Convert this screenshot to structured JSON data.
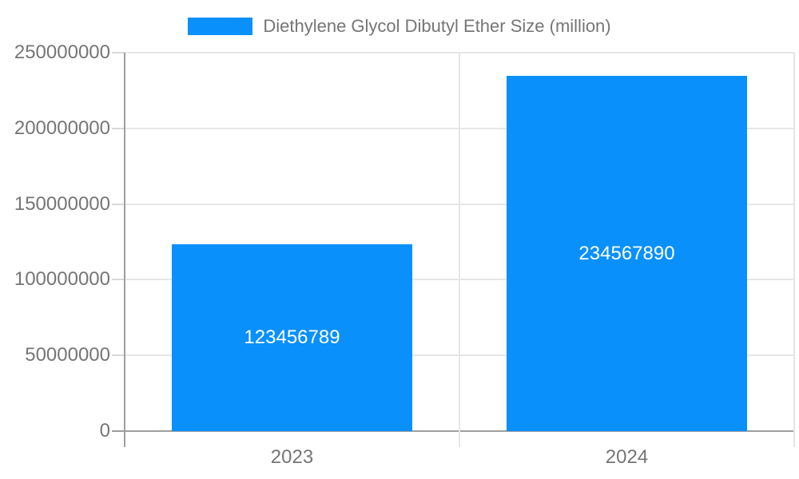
{
  "chart_data": {
    "type": "bar",
    "title": "Diethylene Glycol Dibutyl Ether Size (million)",
    "categories": [
      "2023",
      "2024"
    ],
    "values": [
      123456789,
      234567890
    ],
    "value_labels": [
      "123456789",
      "234567890"
    ],
    "series": [
      {
        "name": "Diethylene Glycol Dibutyl Ether Size (million)",
        "values": [
          123456789,
          234567890
        ]
      }
    ],
    "xlabel": "",
    "ylabel": "",
    "ylim": [
      0,
      250000000
    ],
    "ytick_step": 50000000,
    "ytick_labels": [
      "0",
      "50000000",
      "100000000",
      "150000000",
      "200000000",
      "250000000"
    ],
    "grid": true,
    "legend_position": "top-center",
    "colors": {
      "bar": "#0990fb",
      "bar_label": "#ffffff",
      "axis_text": "#757575",
      "gridline": "#e6e6e6",
      "tick": "#d9d9d9",
      "axis_line": "#9e9e9e"
    }
  }
}
